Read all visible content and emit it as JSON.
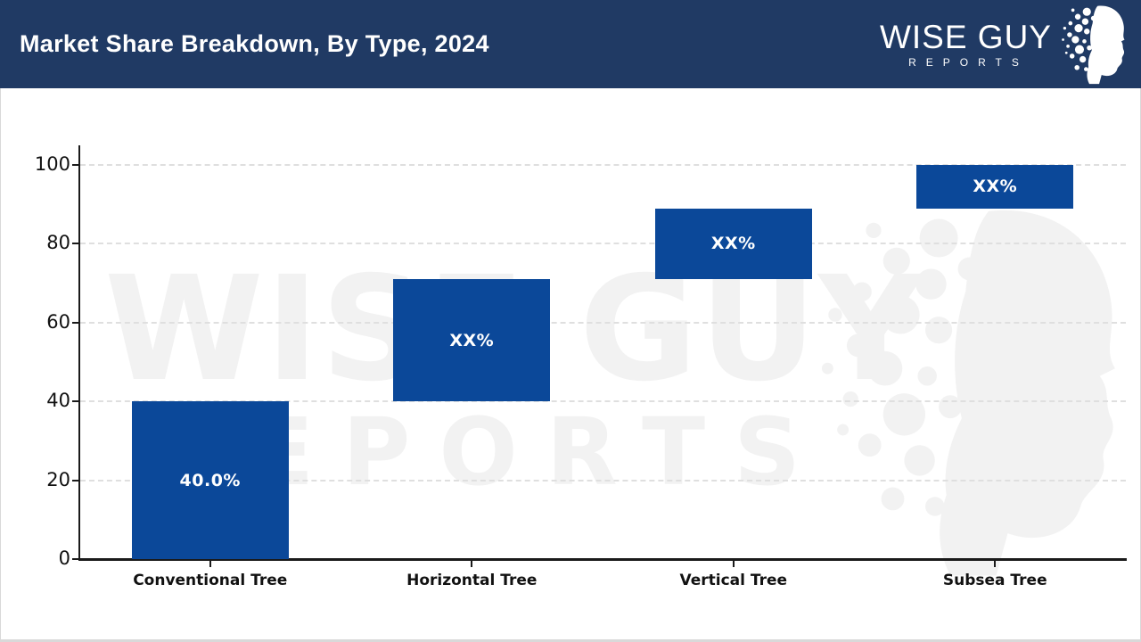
{
  "header": {
    "title": "Market Share Breakdown, By Type, 2024",
    "background_color": "#203a64",
    "logo": {
      "name": "WISE GUY",
      "sub": "REPORTS"
    }
  },
  "chart_data": {
    "type": "bar",
    "variant": "waterfall",
    "title": "Market Share Breakdown, By Type, 2024",
    "categories": [
      "Conventional Tree",
      "Horizontal Tree",
      "Vertical Tree",
      "Subsea Tree"
    ],
    "series": [
      {
        "name": "Market Share",
        "segments": [
          {
            "category": "Conventional Tree",
            "start": 0,
            "end": 40,
            "label": "40.0%"
          },
          {
            "category": "Horizontal Tree",
            "start": 40,
            "end": 71,
            "label": "XX%"
          },
          {
            "category": "Vertical Tree",
            "start": 71,
            "end": 89,
            "label": "XX%"
          },
          {
            "category": "Subsea Tree",
            "start": 89,
            "end": 100,
            "label": "XX%"
          }
        ]
      }
    ],
    "ylim": [
      0,
      100
    ],
    "yticks": [
      0,
      20,
      40,
      60,
      80,
      100
    ],
    "xlabel": "",
    "ylabel": "",
    "bar_color": "#0b4899",
    "bar_label_color": "#ffffff",
    "grid": {
      "horizontal": true,
      "style": "dashed",
      "color": "#dfdfdf"
    },
    "legend": "none",
    "watermark": {
      "line1": "WISE GUY",
      "line2": "REPORTS"
    }
  }
}
